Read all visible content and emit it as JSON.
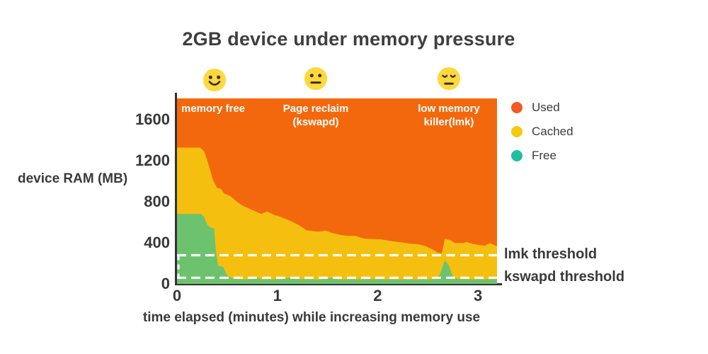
{
  "title": "2GB device under memory pressure",
  "colors": {
    "background": "#ffffff",
    "title_text": "#3f3f3f",
    "axis_text": "#3a3a3a",
    "axis_line": "#333333",
    "plot_label_text": "#ffffff",
    "threshold_line": "#ffffff",
    "emoji_face": "#ffd93b",
    "emoji_features": "#36322b"
  },
  "chart_data": {
    "type": "area",
    "stacked": true,
    "title": "2GB device under memory pressure",
    "xlabel": "time elapsed (minutes) while increasing memory use",
    "ylabel": "device RAM (MB)",
    "xlim": [
      0,
      3.19
    ],
    "ylim": [
      0,
      1810
    ],
    "x_ticks": [
      0,
      1,
      2,
      3
    ],
    "y_ticks": [
      0,
      400,
      800,
      1200,
      1600
    ],
    "grid": false,
    "legend_position": "right",
    "series": [
      {
        "name": "Used",
        "legend_color": "#f15a25",
        "fill": "#f4680d",
        "note": "stack top in MB; Used fills from Cached top up to ~1810 MB (2GB device)",
        "stack_top_mb": [
          [
            0,
            1810
          ],
          [
            3.19,
            1810
          ]
        ]
      },
      {
        "name": "Cached",
        "legend_color": "#f6c90f",
        "fill": "#f5bf10",
        "note": "stack top = Free + Cached, MB",
        "stack_top_mb": [
          [
            0,
            1330
          ],
          [
            0.23,
            1330
          ],
          [
            0.27,
            1295
          ],
          [
            0.31,
            1180
          ],
          [
            0.36,
            1010
          ],
          [
            0.4,
            938
          ],
          [
            0.44,
            925
          ],
          [
            0.47,
            883
          ],
          [
            0.53,
            858
          ],
          [
            0.6,
            800
          ],
          [
            0.65,
            766
          ],
          [
            0.73,
            730
          ],
          [
            0.84,
            683
          ],
          [
            0.9,
            706
          ],
          [
            0.97,
            672
          ],
          [
            1.01,
            662
          ],
          [
            1.1,
            628
          ],
          [
            1.16,
            600
          ],
          [
            1.22,
            572
          ],
          [
            1.29,
            524
          ],
          [
            1.41,
            510
          ],
          [
            1.48,
            520
          ],
          [
            1.53,
            503
          ],
          [
            1.64,
            476
          ],
          [
            1.71,
            468
          ],
          [
            1.78,
            469
          ],
          [
            1.83,
            452
          ],
          [
            1.88,
            441
          ],
          [
            1.97,
            438
          ],
          [
            2.04,
            434
          ],
          [
            2.12,
            420
          ],
          [
            2.23,
            407
          ],
          [
            2.33,
            392
          ],
          [
            2.41,
            386
          ],
          [
            2.48,
            368
          ],
          [
            2.55,
            335
          ],
          [
            2.6,
            305
          ],
          [
            2.64,
            298
          ],
          [
            2.67,
            441
          ],
          [
            2.72,
            428
          ],
          [
            2.77,
            400
          ],
          [
            2.85,
            398
          ],
          [
            2.89,
            408
          ],
          [
            2.95,
            390
          ],
          [
            3.02,
            378
          ],
          [
            3.07,
            374
          ],
          [
            3.12,
            398
          ],
          [
            3.19,
            368
          ]
        ]
      },
      {
        "name": "Free",
        "legend_color": "#1fbfa2",
        "fill": "#6dc36d",
        "note": "stack top = Free, MB",
        "stack_top_mb": [
          [
            0,
            683
          ],
          [
            0.24,
            683
          ],
          [
            0.27,
            655
          ],
          [
            0.3,
            580
          ],
          [
            0.33,
            552
          ],
          [
            0.37,
            540
          ],
          [
            0.39,
            300
          ],
          [
            0.41,
            179
          ],
          [
            0.46,
            168
          ],
          [
            0.48,
            120
          ],
          [
            0.51,
            76
          ],
          [
            0.56,
            50
          ],
          [
            0.7,
            44
          ],
          [
            0.8,
            58
          ],
          [
            0.85,
            45
          ],
          [
            1.05,
            46
          ],
          [
            1.14,
            64
          ],
          [
            1.2,
            48
          ],
          [
            1.42,
            44
          ],
          [
            1.55,
            58
          ],
          [
            1.6,
            44
          ],
          [
            1.9,
            46
          ],
          [
            2.2,
            44
          ],
          [
            2.5,
            44
          ],
          [
            2.58,
            50
          ],
          [
            2.62,
            90
          ],
          [
            2.67,
            232
          ],
          [
            2.71,
            180
          ],
          [
            2.75,
            70
          ],
          [
            2.8,
            48
          ],
          [
            3.0,
            44
          ],
          [
            3.19,
            48
          ]
        ]
      }
    ],
    "thresholds": [
      {
        "label": "lmk threshold",
        "value_mb": 280
      },
      {
        "label": "kswapd threshold",
        "value_mb": 60
      }
    ],
    "annotations": [
      {
        "face": "smiling",
        "lines": [
          "memory free"
        ]
      },
      {
        "face": "neutral",
        "lines": [
          "Page reclaim",
          "(kswapd)"
        ]
      },
      {
        "face": "pensive",
        "lines": [
          "low memory",
          "killer(lmk)"
        ]
      }
    ]
  }
}
